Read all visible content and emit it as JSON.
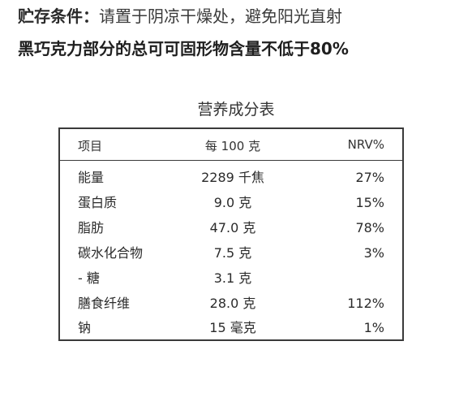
{
  "storage": {
    "label": "贮存条件：",
    "text": "请置于阴凉干燥处，避免阳光直射"
  },
  "claim": "黑巧克力部分的总可可固形物含量不低于80%",
  "nutrition": {
    "title": "营养成分表",
    "header": {
      "item": "项目",
      "per": "每 100 克",
      "nrv": "NRV%"
    },
    "rows": [
      {
        "item": "能量",
        "amount": "2289 千焦",
        "nrv": "27%"
      },
      {
        "item": "蛋白质",
        "amount": "9.0 克",
        "nrv": "15%"
      },
      {
        "item": "脂肪",
        "amount": "47.0 克",
        "nrv": "78%"
      },
      {
        "item": "碳水化合物",
        "amount": "7.5 克",
        "nrv": "3%"
      },
      {
        "item": "- 糖",
        "amount": "3.1 克",
        "nrv": ""
      },
      {
        "item": "膳食纤维",
        "amount": "28.0 克",
        "nrv": "112%"
      },
      {
        "item": "钠",
        "amount": "15 毫克",
        "nrv": "1%"
      }
    ]
  }
}
